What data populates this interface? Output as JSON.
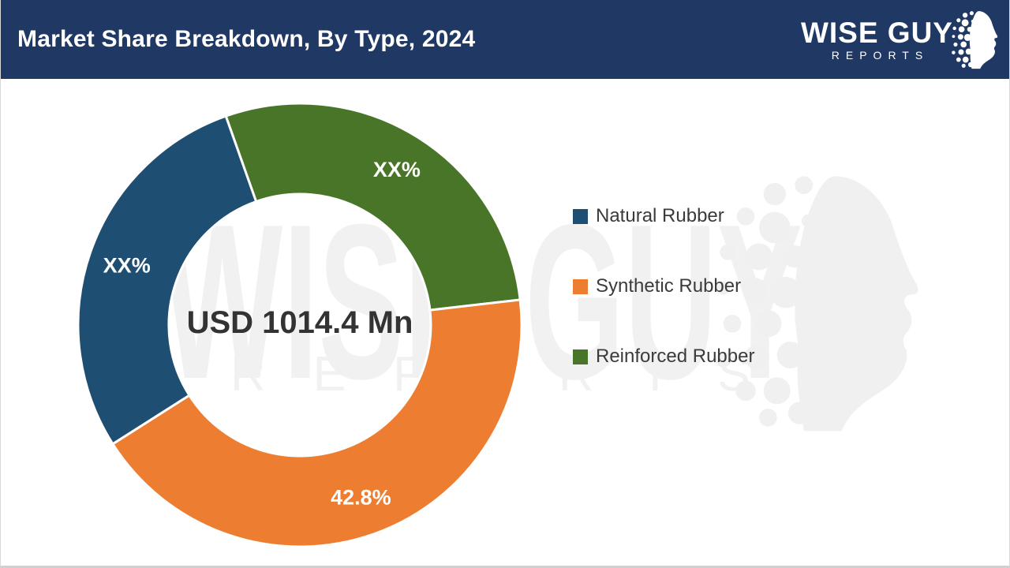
{
  "header": {
    "title": "Market Share Breakdown, By Type, 2024",
    "bg_color": "#1F3864",
    "logo": {
      "line1": "WISE GUY",
      "line2": "REPORTS"
    }
  },
  "watermark": {
    "line1": "WISE GUY",
    "line2": "REPORTS"
  },
  "chart_data": {
    "type": "pie",
    "subtype": "donut",
    "title": "Market Share Breakdown, By Type, 2024",
    "center_label": "USD 1014.4 Mn",
    "start_angle_deg": -19.5,
    "direction": "clockwise",
    "inner_radius_px": 166,
    "outer_radius_px": 281,
    "slices": [
      {
        "name": "Reinforced Rubber",
        "label": "XX%",
        "value_pct": 28.6,
        "color": "#487527"
      },
      {
        "name": "Synthetic Rubber",
        "label": "42.8%",
        "value_pct": 42.8,
        "color": "#ED7D31"
      },
      {
        "name": "Natural Rubber",
        "label": "XX%",
        "value_pct": 28.6,
        "color": "#1F4E73"
      }
    ],
    "legend_position": "right",
    "legend": [
      {
        "label": "Natural Rubber",
        "color": "#1F4E73"
      },
      {
        "label": "Synthetic Rubber",
        "color": "#ED7D31"
      },
      {
        "label": "Reinforced Rubber",
        "color": "#487527"
      }
    ]
  }
}
